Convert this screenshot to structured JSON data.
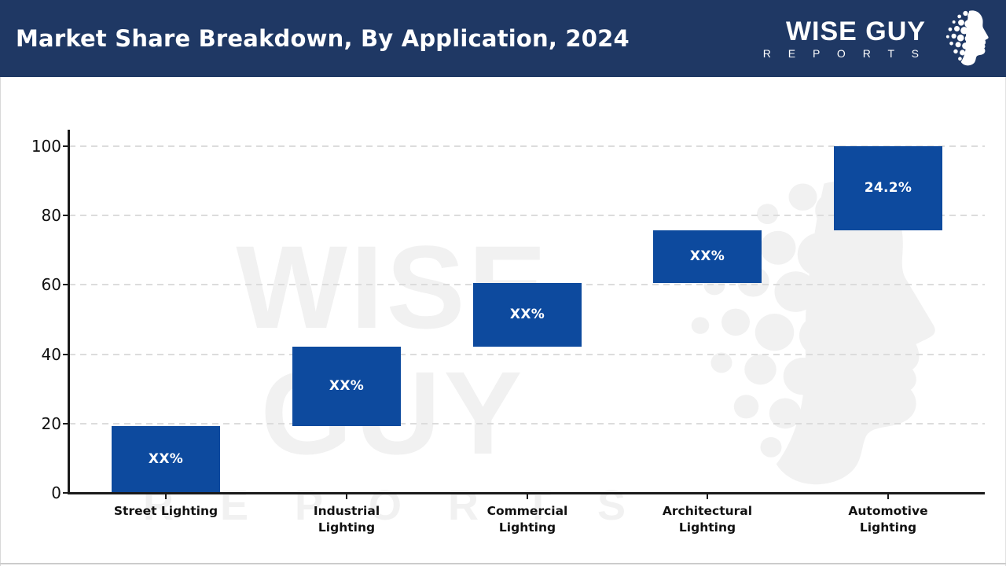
{
  "header": {
    "title": "Market Share Breakdown, By Application, 2024",
    "bg_color": "#1f3864",
    "logo": {
      "line1": "WISE GUY",
      "line2": "R E P O R T S"
    }
  },
  "watermark": {
    "line1": "WISE GUY",
    "line2": "R E P O R T S"
  },
  "chart_data": {
    "type": "bar",
    "subtype": "waterfall-floating-bars",
    "title": "Market Share Breakdown, By Application, 2024",
    "xlabel": "",
    "ylabel": "",
    "ylim": [
      0,
      105
    ],
    "yticks": [
      0,
      20,
      40,
      60,
      80,
      100
    ],
    "grid": "horizontal-dashed",
    "legend": "none",
    "bar_color": "#0d4a9e",
    "categories": [
      "Street Lighting",
      "Industrial\nLighting",
      "Commercial\nLighting",
      "Architectural\nLighting",
      "Automotive\nLighting"
    ],
    "values": [
      19.3,
      22.9,
      18.4,
      15.2,
      24.2
    ],
    "segments": [
      {
        "category": "Street Lighting",
        "start": 0,
        "end": 19.3,
        "value": 19.3,
        "label": "XX%"
      },
      {
        "category": "Industrial Lighting",
        "start": 19.3,
        "end": 42.2,
        "value": 22.9,
        "label": "XX%"
      },
      {
        "category": "Commercial Lighting",
        "start": 42.2,
        "end": 60.6,
        "value": 18.4,
        "label": "XX%"
      },
      {
        "category": "Architectural Lighting",
        "start": 60.6,
        "end": 75.8,
        "value": 15.2,
        "label": "XX%"
      },
      {
        "category": "Automotive Lighting",
        "start": 75.8,
        "end": 100,
        "value": 24.2,
        "label": "24.2%"
      }
    ]
  }
}
